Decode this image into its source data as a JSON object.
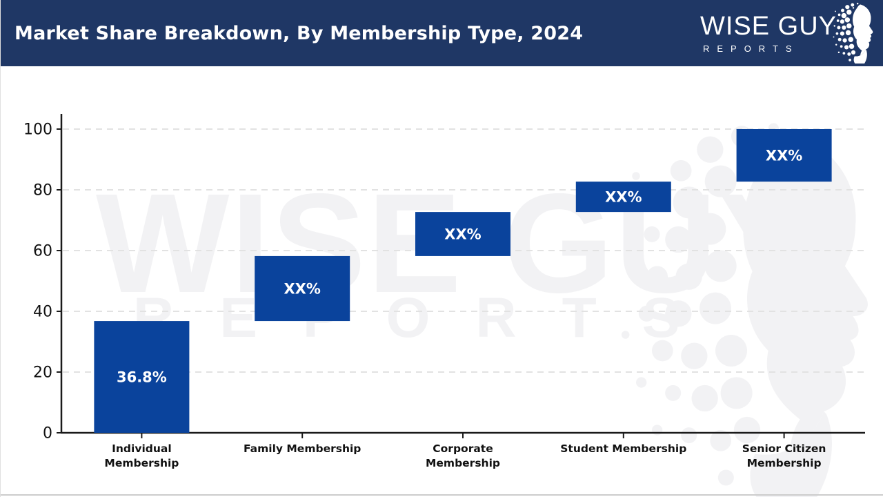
{
  "header": {
    "title": "Market Share Breakdown, By Membership Type, 2024",
    "logo": {
      "brand_top": "WISE GUY",
      "brand_bottom": "REPORTS"
    }
  },
  "watermark": {
    "text_top": "WISE GUY",
    "text_bottom": "REPORTS"
  },
  "colors": {
    "header_bg": "#1f3765",
    "bar_fill": "#0a439c",
    "bar_label": "#ffffff",
    "axis": "#1a1a1a",
    "tick_label": "#111111",
    "gridline": "#e2e2e2",
    "watermark": "#f2f2f4"
  },
  "chart_data": {
    "type": "bar",
    "subtype": "waterfall",
    "title": "Market Share Breakdown, By Membership Type, 2024",
    "xlabel": "",
    "ylabel": "",
    "ylim": [
      0,
      100
    ],
    "yticks": [
      0,
      20,
      40,
      60,
      80,
      100
    ],
    "grid": "horizontal-dashed",
    "legend": "none",
    "categories": [
      "Individual Membership",
      "Family Membership",
      "Corporate Membership",
      "Student Membership",
      "Senior Citizen Membership"
    ],
    "category_lines": [
      [
        "Individual",
        "Membership"
      ],
      [
        "Family Membership"
      ],
      [
        "Corporate",
        "Membership"
      ],
      [
        "Student Membership"
      ],
      [
        "Senior Citizen",
        "Membership"
      ]
    ],
    "segments": [
      {
        "category": "Individual Membership",
        "start": 0,
        "end": 36.8,
        "value": 36.8,
        "label": "36.8%"
      },
      {
        "category": "Family Membership",
        "start": 36.8,
        "end": 58.2,
        "value": 21.4,
        "label": "XX%"
      },
      {
        "category": "Corporate Membership",
        "start": 58.2,
        "end": 72.7,
        "value": 14.5,
        "label": "XX%"
      },
      {
        "category": "Student Membership",
        "start": 72.7,
        "end": 82.7,
        "value": 10.0,
        "label": "XX%"
      },
      {
        "category": "Senior Citizen Membership",
        "start": 82.7,
        "end": 100,
        "value": 17.3,
        "label": "XX%"
      }
    ]
  }
}
